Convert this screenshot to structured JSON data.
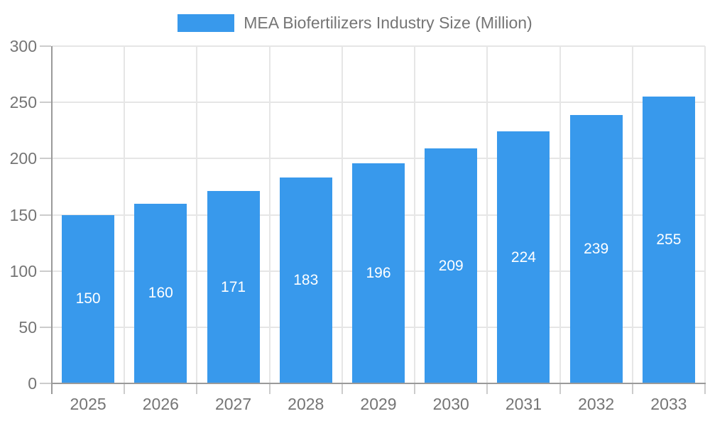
{
  "legend": {
    "label": "MEA Biofertilizers Industry Size (Million)"
  },
  "chart_data": {
    "type": "bar",
    "title": "MEA Biofertilizers Industry Size (Million)",
    "categories": [
      "2025",
      "2026",
      "2027",
      "2028",
      "2029",
      "2030",
      "2031",
      "2032",
      "2033"
    ],
    "values": [
      150,
      160,
      171,
      183,
      196,
      209,
      224,
      239,
      255
    ],
    "xlabel": "",
    "ylabel": "",
    "ylim": [
      0,
      300
    ],
    "yticks": [
      0,
      50,
      100,
      150,
      200,
      250,
      300
    ],
    "grid": true,
    "legend_position": "top",
    "bar_color": "#3899EC",
    "bar_label_color": "#ffffff",
    "gridline_color": "#e6e6e6",
    "tick_color": "#cccccc",
    "axis_color": "#9a9a9a",
    "label_color": "#757575",
    "background_color": "#ffffff"
  }
}
